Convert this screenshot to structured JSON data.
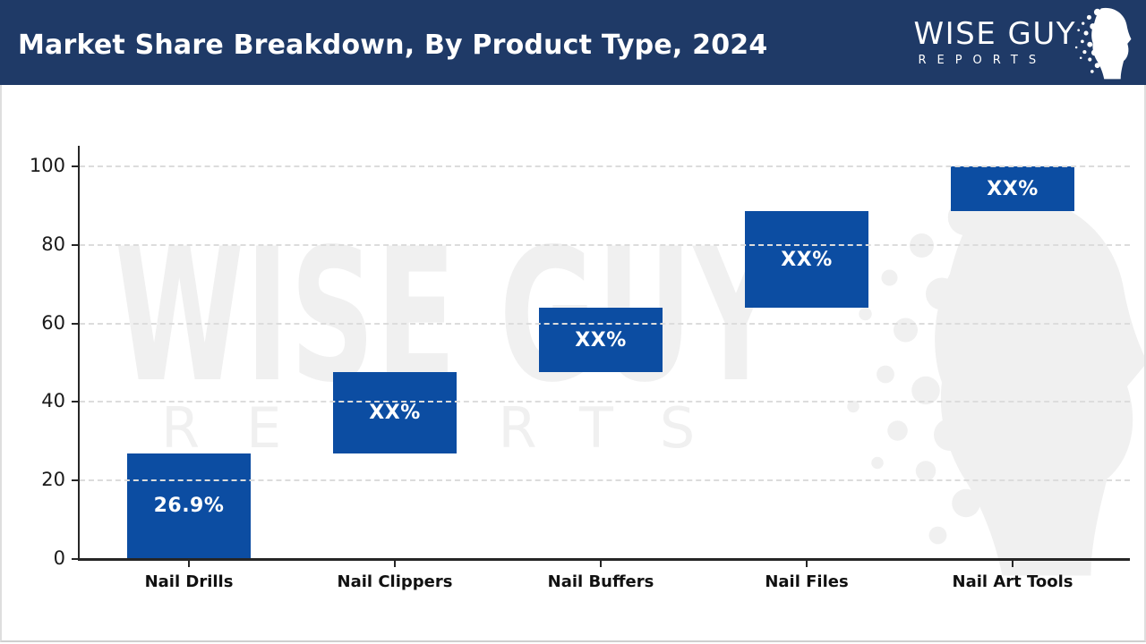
{
  "header": {
    "title": "Market Share Breakdown, By Product Type, 2024",
    "logo": {
      "line1": "WISE GUY",
      "line2": "REPORTS"
    }
  },
  "watermark": {
    "line1": "WISE GUY",
    "line2": "REPORTS"
  },
  "colors": {
    "header_bg": "#1f3a67",
    "bar": "#0c4da2",
    "bar_label": "#ffffff",
    "watermark": "#f0f0f0",
    "grid": "#dcdcdc",
    "axis": "#262626"
  },
  "chart_data": {
    "type": "bar",
    "subtype": "waterfall",
    "title": "Market Share Breakdown, By Product Type, 2024",
    "categories": [
      "Nail Drills",
      "Nail Clippers",
      "Nail Buffers",
      "Nail Files",
      "Nail Art Tools"
    ],
    "series": [
      {
        "name": "Market share (%)",
        "segments": [
          {
            "category": "Nail Drills",
            "start": 0,
            "end": 26.9,
            "label": "26.9%"
          },
          {
            "category": "Nail Clippers",
            "start": 26.9,
            "end": 47.5,
            "label": "XX%"
          },
          {
            "category": "Nail Buffers",
            "start": 47.5,
            "end": 64.0,
            "label": "XX%"
          },
          {
            "category": "Nail Files",
            "start": 64.0,
            "end": 88.6,
            "label": "XX%"
          },
          {
            "category": "Nail Art Tools",
            "start": 88.6,
            "end": 100,
            "label": "XX%"
          }
        ]
      }
    ],
    "xlabel": "",
    "ylabel": "",
    "ylim": [
      0,
      100
    ],
    "yticks": [
      0,
      20,
      40,
      60,
      80,
      100
    ],
    "grid": "horizontal-dashed",
    "legend": "none"
  }
}
